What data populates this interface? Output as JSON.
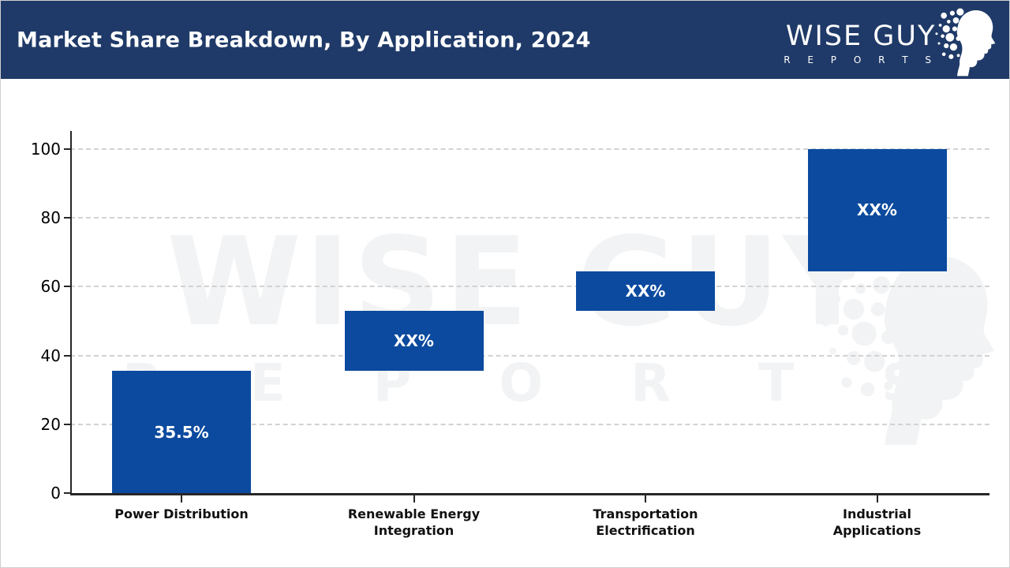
{
  "header": {
    "title": "Market Share Breakdown, By Application, 2024",
    "brand": {
      "line1": "WISE GUY",
      "line2": "R E P O R T S"
    }
  },
  "watermark": {
    "line1": "WISE GUY",
    "line2": "R E P O R T S"
  },
  "colors": {
    "header_bg": "#1f3a68",
    "bar": "#0b4a9e",
    "bar_label": "#ffffff",
    "grid": "#d2d2d2",
    "axis": "#262626",
    "watermark": "#f2f3f4",
    "tick_text": "#000000",
    "category_text": "#111111"
  },
  "chart_data": {
    "type": "bar",
    "subtype": "waterfall",
    "title": "Market Share Breakdown, By Application, 2024",
    "categories": [
      "Power Distribution",
      "Renewable Energy Integration",
      "Transportation Electrification",
      "Industrial Applications"
    ],
    "series": [
      {
        "name": "Market Share",
        "segments": [
          {
            "start": 0,
            "end": 35.5,
            "label": "35.5%"
          },
          {
            "start": 35.5,
            "end": 53,
            "label": "XX%"
          },
          {
            "start": 53,
            "end": 64.5,
            "label": "XX%"
          },
          {
            "start": 64.5,
            "end": 100,
            "label": "XX%"
          }
        ]
      }
    ],
    "xlabel": "",
    "ylabel": "",
    "ylim": [
      0,
      105
    ],
    "yticks": [
      0,
      20,
      40,
      60,
      80,
      100
    ],
    "grid": "horizontal-dashed",
    "legend": "none",
    "bar_color": "#0b4a9e"
  }
}
